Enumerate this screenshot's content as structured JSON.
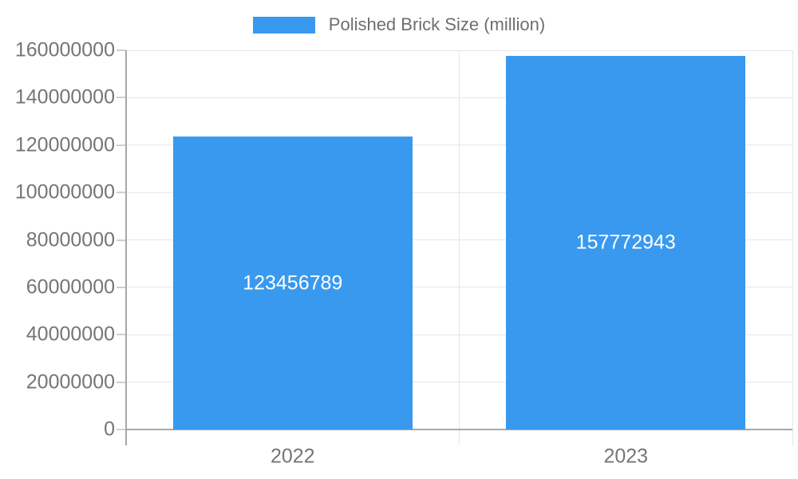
{
  "legend": {
    "label": "Polished Brick Size (million)",
    "position": "top"
  },
  "chart_data": {
    "type": "bar",
    "title": "",
    "xlabel": "",
    "ylabel": "",
    "categories": [
      "2022",
      "2023"
    ],
    "series": [
      {
        "name": "Polished Brick Size (million)",
        "values": [
          123456789,
          157772943
        ]
      }
    ],
    "bar_labels": [
      "123456789",
      "157772943"
    ],
    "ylim": [
      0,
      160000000
    ],
    "ytick_step": 20000000,
    "yticks": [
      0,
      20000000,
      40000000,
      60000000,
      80000000,
      100000000,
      120000000,
      140000000,
      160000000
    ],
    "grid": true,
    "legend_position": "top"
  },
  "colors": {
    "bar": "#3999ee",
    "bar_label_text": "#ffffff",
    "gridline": "#e6e6e6",
    "axis_line": "#a8a8a8",
    "tick": "#cfcfcf",
    "axis_text": "#757575",
    "legend_text": "#6e6e6e",
    "background": "#ffffff"
  }
}
